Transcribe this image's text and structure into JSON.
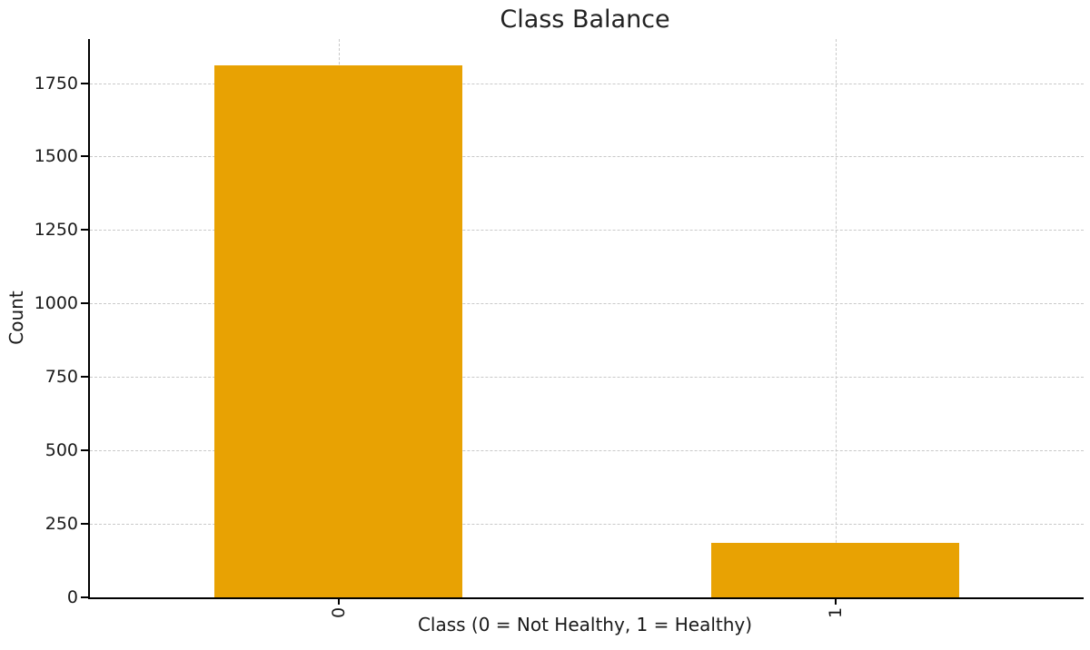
{
  "chart_data": {
    "type": "bar",
    "title": "Class Balance",
    "xlabel": "Class (0 = Not Healthy, 1 = Healthy)",
    "ylabel": "Count",
    "categories": [
      "0",
      "1"
    ],
    "values": [
      1810,
      185
    ],
    "yticks": [
      0,
      250,
      500,
      750,
      1000,
      1250,
      1500,
      1750
    ],
    "ylim": [
      0,
      1900
    ],
    "xlim": [
      -0.5,
      1.5
    ],
    "bar_width_units": 0.5,
    "bar_color": "#E8A203",
    "grid_color": "#C9C9C9",
    "grid_style": "dashed",
    "xtick_rotation_deg": 90,
    "legend": "none"
  }
}
